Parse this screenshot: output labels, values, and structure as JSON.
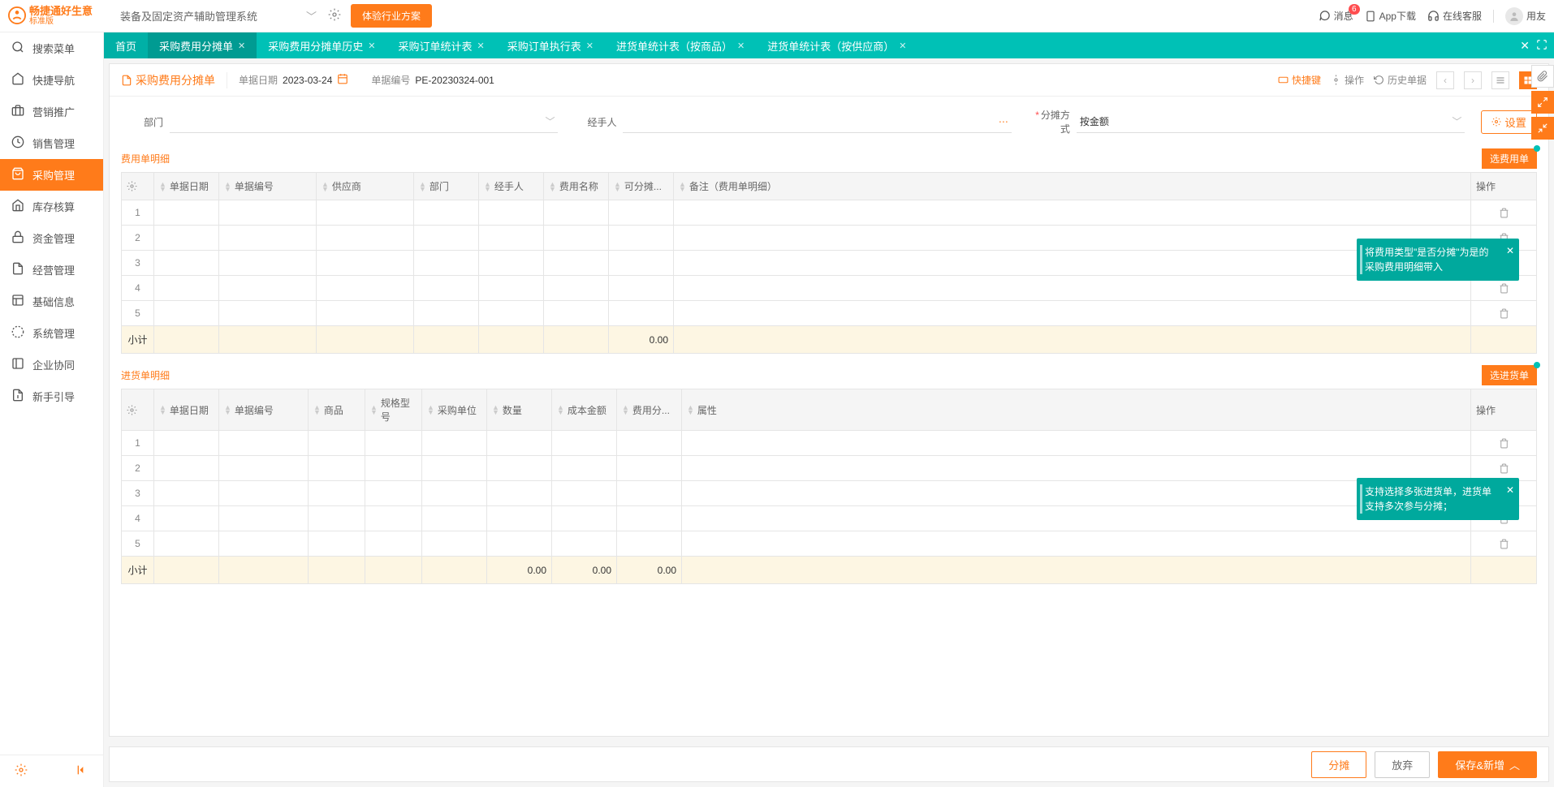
{
  "brand": {
    "name": "畅捷通好生意",
    "edition": "标准版"
  },
  "system_select": "装备及固定资产辅助管理系统",
  "top_cta": "体验行业方案",
  "top_right": {
    "msg": "消息",
    "msg_badge": "6",
    "app": "App下载",
    "service": "在线客服",
    "user": "用友"
  },
  "sidebar": {
    "items": [
      {
        "label": "搜索菜单"
      },
      {
        "label": "快捷导航"
      },
      {
        "label": "营销推广"
      },
      {
        "label": "销售管理"
      },
      {
        "label": "采购管理"
      },
      {
        "label": "库存核算"
      },
      {
        "label": "资金管理"
      },
      {
        "label": "经营管理"
      },
      {
        "label": "基础信息"
      },
      {
        "label": "系统管理"
      },
      {
        "label": "企业协同"
      },
      {
        "label": "新手引导"
      }
    ],
    "active_index": 4
  },
  "tabs": {
    "items": [
      {
        "label": "首页"
      },
      {
        "label": "采购费用分摊单"
      },
      {
        "label": "采购费用分摊单历史"
      },
      {
        "label": "采购订单统计表"
      },
      {
        "label": "采购订单执行表"
      },
      {
        "label": "进货单统计表（按商品）"
      },
      {
        "label": "进货单统计表（按供应商）"
      }
    ],
    "active_index": 1
  },
  "doc": {
    "title": "采购费用分摊单",
    "date_label": "单据日期",
    "date_value": "2023-03-24",
    "no_label": "单据编号",
    "no_value": "PE-20230324-001",
    "shortcut": "快捷键",
    "operate": "操作",
    "history": "历史单据"
  },
  "form": {
    "dept_label": "部门",
    "handler_label": "经手人",
    "method_label": "分摊方式",
    "method_value": "按金额",
    "setup": "设置"
  },
  "expense": {
    "section": "费用单明细",
    "select_btn": "选费用单",
    "columns": [
      "单据日期",
      "单据编号",
      "供应商",
      "部门",
      "经手人",
      "费用名称",
      "可分摊...",
      "备注（费用单明细）",
      "操作"
    ],
    "rows": [
      1,
      2,
      3,
      4,
      5
    ],
    "subtotal_label": "小计",
    "subtotal_val": "0.00",
    "tip": "将费用类型\"是否分摊\"为是的采购费用明细带入"
  },
  "goods": {
    "section": "进货单明细",
    "select_btn": "选进货单",
    "columns": [
      "单据日期",
      "单据编号",
      "商品",
      "规格型号",
      "采购单位",
      "数量",
      "成本金额",
      "费用分...",
      "属性",
      "操作"
    ],
    "rows": [
      1,
      2,
      3,
      4,
      5
    ],
    "subtotal_label": "小计",
    "subtotal_vals": [
      "0.00",
      "0.00",
      "0.00"
    ],
    "tip": "支持选择多张进货单，进货单支持多次参与分摊；"
  },
  "footer": {
    "allocate": "分摊",
    "discard": "放弃",
    "save": "保存&新增"
  }
}
